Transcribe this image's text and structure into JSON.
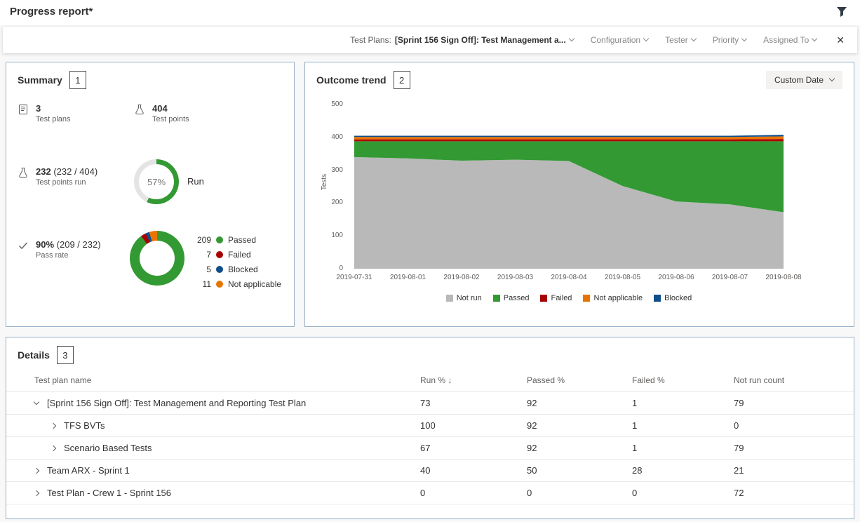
{
  "header": {
    "title": "Progress report*"
  },
  "icons": {
    "close_glyph": "✕"
  },
  "filter_bar": {
    "test_plans_label": "Test Plans:",
    "test_plans_value": "[Sprint 156 Sign Off]: Test Management a...",
    "dropdowns": [
      "Configuration",
      "Tester",
      "Priority",
      "Assigned To"
    ]
  },
  "summary": {
    "title": "Summary",
    "callout": "1",
    "test_plans": {
      "value": "3",
      "label": "Test plans"
    },
    "test_points": {
      "value": "404",
      "label": "Test points"
    },
    "test_points_run": {
      "value": "232",
      "detail": "(232 / 404)",
      "label": "Test points run"
    },
    "run_ring": {
      "percent": 57,
      "text": "57%",
      "caption": "Run",
      "color": "#339933",
      "track_color": "#e4e4e4"
    },
    "pass_rate": {
      "value": "90%",
      "detail": "(209 / 232)",
      "label": "Pass rate"
    }
  },
  "outcome_trend": {
    "title": "Outcome trend",
    "callout": "2",
    "date_filter": "Custom Date"
  },
  "details": {
    "title": "Details",
    "callout": "3",
    "columns": [
      "Test plan name",
      "Run % ↓",
      "Passed %",
      "Failed %",
      "Not run count"
    ],
    "rows": [
      {
        "name": "[Sprint 156 Sign Off]: Test Management and Reporting Test Plan",
        "level": 0,
        "expanded": true,
        "run": "73",
        "passed": "92",
        "failed": "1",
        "not_run": "79"
      },
      {
        "name": "TFS BVTs",
        "level": 1,
        "expanded": false,
        "run": "100",
        "passed": "92",
        "failed": "1",
        "not_run": "0"
      },
      {
        "name": "Scenario Based Tests",
        "level": 1,
        "expanded": false,
        "run": "67",
        "passed": "92",
        "failed": "1",
        "not_run": "79"
      },
      {
        "name": "Team ARX - Sprint 1",
        "level": 0,
        "expanded": false,
        "run": "40",
        "passed": "50",
        "failed": "28",
        "not_run": "21"
      },
      {
        "name": "Test Plan - Crew 1 - Sprint 156",
        "level": 0,
        "expanded": false,
        "run": "0",
        "passed": "0",
        "failed": "0",
        "not_run": "72"
      }
    ]
  },
  "chart_data": [
    {
      "type": "pie",
      "donut": true,
      "title": "Test points run outcome",
      "labels": [
        "Passed",
        "Failed",
        "Blocked",
        "Not applicable"
      ],
      "values": [
        209,
        7,
        5,
        11
      ],
      "colors": [
        "#339933",
        "#a80000",
        "#104e8b",
        "#e87400"
      ]
    },
    {
      "type": "area",
      "stacked": true,
      "title": "Outcome trend",
      "ylabel": "Tests",
      "ylim": [
        0,
        500
      ],
      "yticks": [
        0,
        100,
        200,
        300,
        400,
        500
      ],
      "grid": false,
      "legend_position": "bottom",
      "x": [
        "2019-07-31",
        "2019-08-01",
        "2019-08-02",
        "2019-08-03",
        "2019-08-04",
        "2019-08-05",
        "2019-08-06",
        "2019-08-07",
        "2019-08-08"
      ],
      "series": [
        {
          "name": "Not run",
          "color": "#b9b9b9",
          "values": [
            340,
            336,
            329,
            332,
            328,
            252,
            205,
            196,
            172
          ]
        },
        {
          "name": "Passed",
          "color": "#339933",
          "values": [
            48,
            52,
            59,
            56,
            60,
            136,
            183,
            192,
            216
          ]
        },
        {
          "name": "Failed",
          "color": "#a80000",
          "values": [
            6,
            6,
            6,
            6,
            6,
            6,
            6,
            6,
            7
          ]
        },
        {
          "name": "Not applicable",
          "color": "#e87400",
          "values": [
            7,
            7,
            7,
            7,
            7,
            7,
            7,
            7,
            8
          ]
        },
        {
          "name": "Blocked",
          "color": "#104e8b",
          "values": [
            4,
            4,
            4,
            4,
            4,
            4,
            4,
            4,
            5
          ]
        }
      ]
    }
  ]
}
